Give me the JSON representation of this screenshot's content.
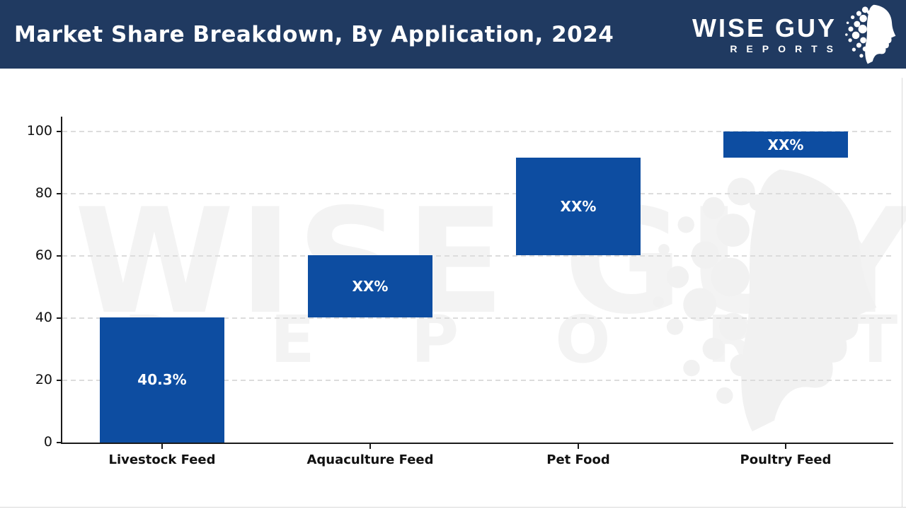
{
  "header": {
    "title": "Market Share Breakdown, By Application, 2024",
    "bg_color": "#203a61",
    "logo": {
      "line1": "WISE GUY",
      "line2": "REPORTS",
      "icon": "dotted-face-icon"
    }
  },
  "watermark": {
    "line1": "WISE GUY",
    "line2": "R E P O R T S"
  },
  "chart_data": {
    "type": "bar",
    "subtype": "waterfall",
    "title": "Market Share Breakdown, By Application, 2024",
    "categories": [
      "Livestock Feed",
      "Aquaculture Feed",
      "Pet Food",
      "Poultry Feed"
    ],
    "bars": [
      {
        "category": "Livestock Feed",
        "start": 0,
        "end": 40.3,
        "label": "40.3%"
      },
      {
        "category": "Aquaculture Feed",
        "start": 40.3,
        "end": 60.3,
        "label": "XX%"
      },
      {
        "category": "Pet Food",
        "start": 60.3,
        "end": 91.5,
        "label": "XX%"
      },
      {
        "category": "Poultry Feed",
        "start": 91.5,
        "end": 100,
        "label": "XX%"
      }
    ],
    "ylim": [
      0,
      100
    ],
    "yticks": [
      0,
      20,
      40,
      60,
      80,
      100
    ],
    "xlabel": "",
    "ylabel": "",
    "grid": "dashed-horizontal",
    "grid_color": "#dcdcdc",
    "bar_color": "#0d4da1",
    "bar_label_color": "#ffffff",
    "axis_color": "#1a1a1a",
    "legend": "none"
  }
}
